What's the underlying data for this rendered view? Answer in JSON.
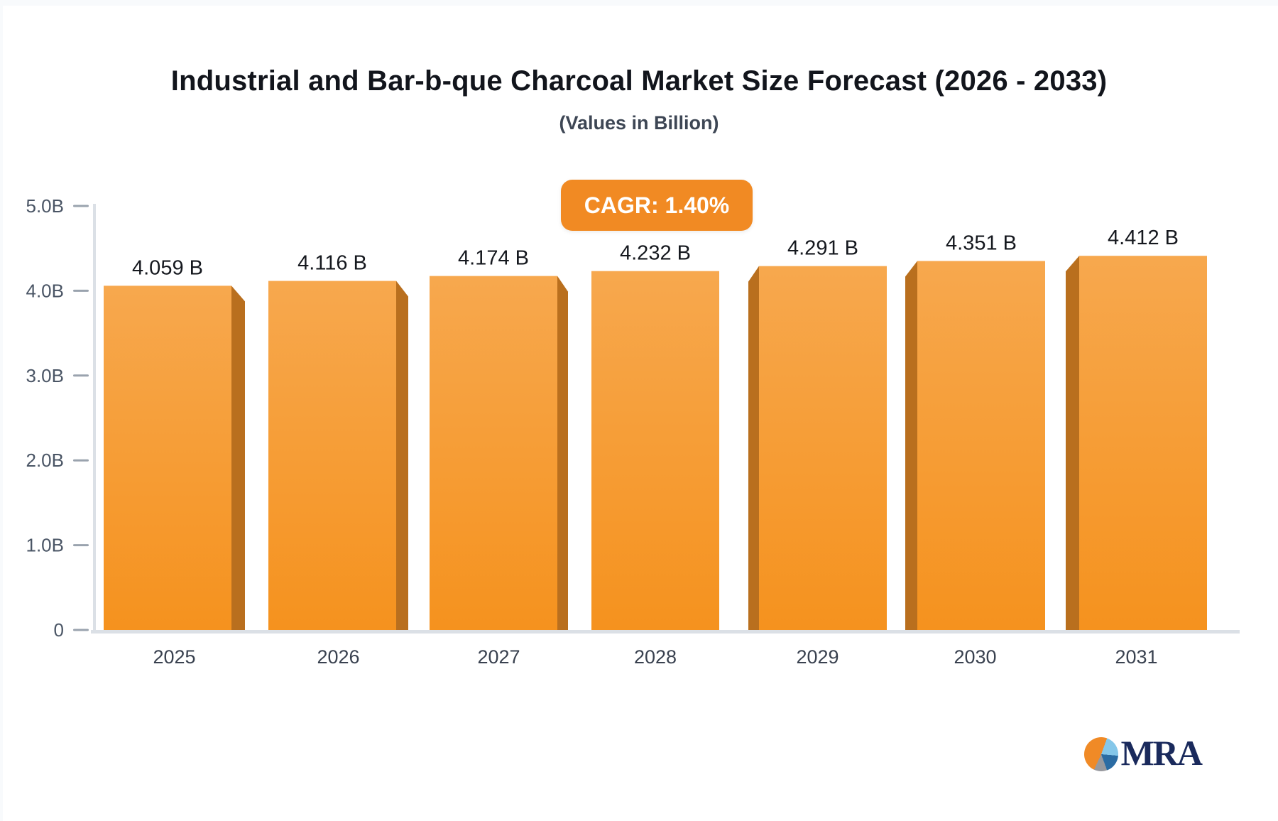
{
  "title": "Industrial and Bar-b-que Charcoal Market Size Forecast (2026 - 2033)",
  "subtitle": "(Values in Billion)",
  "badge": {
    "label": "CAGR: 1.40%",
    "color": "#f18a23"
  },
  "chart_data": {
    "type": "bar",
    "categories": [
      "2025",
      "2026",
      "2027",
      "2028",
      "2029",
      "2030",
      "2031"
    ],
    "values": [
      4.059,
      4.116,
      4.174,
      4.232,
      4.291,
      4.351,
      4.412
    ],
    "bar_labels": [
      "4.059 B",
      "4.116 B",
      "4.174 B",
      "4.232 B",
      "4.291 B",
      "4.351 B",
      "4.412 B"
    ],
    "title": "Industrial and Bar-b-que Charcoal Market Size Forecast (2026 - 2033)",
    "subtitle": "(Values in Billion)",
    "cagr_annotation": "CAGR: 1.40%",
    "xlabel": "",
    "ylabel": "",
    "ylim": [
      0,
      5
    ],
    "yticks": [
      {
        "value": 5,
        "label": "5.0B"
      },
      {
        "value": 4,
        "label": "4.0B"
      },
      {
        "value": 3,
        "label": "3.0B"
      },
      {
        "value": 2,
        "label": "2.0B"
      },
      {
        "value": 1,
        "label": "1.0B"
      },
      {
        "value": 0,
        "label": "0"
      }
    ],
    "grid": false,
    "legend": "none",
    "bar_face_color_top": "#f7a84e",
    "bar_face_color_bottom": "#f5921e",
    "bar_side_color": "#b96f1e",
    "axis_line_color": "#dbe0e6"
  },
  "logo": {
    "text": "MRA",
    "text_color": "#1a2a5c",
    "pie_colors": [
      "#f08a26",
      "#85c7e9",
      "#2b6ca3",
      "#97999e"
    ]
  }
}
